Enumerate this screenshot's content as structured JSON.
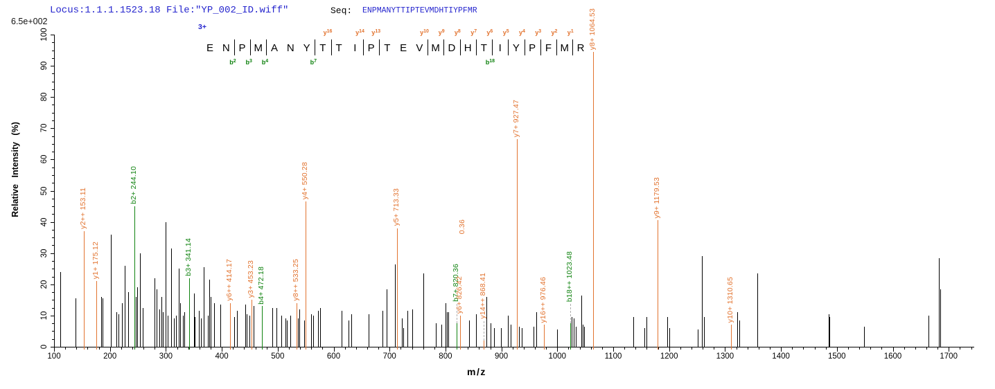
{
  "header": {
    "locus_file": "Locus:1.1.1.1523.18 File:\"YP_002_ID.wiff\"",
    "seq_label": "Seq:",
    "sequence": "ENPMANYTTIPTEVMDHTIYPFMR"
  },
  "colors": {
    "header_blue": "#2626CE",
    "y_ion_orange": "#E2732F",
    "b_ion_green": "#0F820F",
    "peak_black": "#000000",
    "leader_gray": "#ADADAD",
    "axis_black": "#000000"
  },
  "sequence_annotation": {
    "charge": "3+",
    "residues": [
      "E",
      "N",
      "P",
      "M",
      "A",
      "N",
      "Y",
      "T",
      "T",
      "I",
      "P",
      "T",
      "E",
      "V",
      "M",
      "D",
      "H",
      "T",
      "I",
      "Y",
      "P",
      "F",
      "M",
      "R"
    ],
    "cleavages": [
      {
        "after_residue": 2,
        "b_ion": "b2"
      },
      {
        "after_residue": 3,
        "b_ion": "b3"
      },
      {
        "after_residue": 4,
        "b_ion": "b4"
      },
      {
        "after_residue": 7,
        "b_ion": "b7"
      },
      {
        "after_residue": 8,
        "y_ion": "y16"
      },
      {
        "after_residue": 10,
        "y_ion": "y14"
      },
      {
        "after_residue": 11,
        "y_ion": "y13"
      },
      {
        "after_residue": 14,
        "y_ion": "y10"
      },
      {
        "after_residue": 15,
        "y_ion": "y9"
      },
      {
        "after_residue": 16,
        "y_ion": "y8"
      },
      {
        "after_residue": 17,
        "y_ion": "y7"
      },
      {
        "after_residue": 18,
        "y_ion": "y6",
        "b_ion": "b18"
      },
      {
        "after_residue": 19,
        "y_ion": "y5"
      },
      {
        "after_residue": 20,
        "y_ion": "y4"
      },
      {
        "after_residue": 21,
        "y_ion": "y3"
      },
      {
        "after_residue": 22,
        "y_ion": "y2"
      },
      {
        "after_residue": 23,
        "y_ion": "y1"
      }
    ]
  },
  "chart_data": {
    "type": "bar",
    "subtype": "MS/MS peptide fragmentation mass spectrum",
    "title": "",
    "xlabel": "m/z",
    "ylabel": "Relative Intensity (%)",
    "base_intensity_label": "6.5e+002",
    "xlim": [
      100,
      1700
    ],
    "ylim": [
      0,
      100
    ],
    "x_major_tick_step": 100,
    "x_minor_tick_step": 20,
    "y_major_tick_step": 10,
    "y_minor_tick_step": 2.5,
    "x_tick_labels": [
      100,
      200,
      300,
      400,
      500,
      600,
      700,
      800,
      900,
      1000,
      1100,
      1200,
      1300,
      1400,
      1500,
      1600,
      1700
    ],
    "y_tick_labels": [
      0,
      10,
      20,
      30,
      40,
      50,
      60,
      70,
      80,
      90,
      100
    ],
    "grid": false,
    "peaks": [
      [
        111,
        24
      ],
      [
        138,
        15.5
      ],
      [
        184,
        16
      ],
      [
        187,
        15.5
      ],
      [
        202,
        36
      ],
      [
        211,
        11
      ],
      [
        215,
        10.5
      ],
      [
        221,
        14
      ],
      [
        226,
        26
      ],
      [
        232,
        17.5
      ],
      [
        246,
        16
      ],
      [
        249,
        19
      ],
      [
        254,
        30
      ],
      [
        258,
        12.5
      ],
      [
        279,
        22
      ],
      [
        283,
        18.5
      ],
      [
        288,
        12
      ],
      [
        292,
        16
      ],
      [
        295,
        11
      ],
      [
        299,
        40
      ],
      [
        303,
        10
      ],
      [
        309,
        31.5
      ],
      [
        314,
        9
      ],
      [
        318,
        10
      ],
      [
        323,
        25
      ],
      [
        326,
        14
      ],
      [
        330,
        10
      ],
      [
        333,
        11
      ],
      [
        350,
        17
      ],
      [
        352,
        9.5
      ],
      [
        359,
        11.5
      ],
      [
        363,
        9
      ],
      [
        368,
        25.5
      ],
      [
        375,
        10
      ],
      [
        378,
        21.5
      ],
      [
        380,
        16
      ],
      [
        386,
        14
      ],
      [
        397,
        13.5
      ],
      [
        422,
        9.5
      ],
      [
        427,
        11.5
      ],
      [
        442,
        13.5
      ],
      [
        445,
        10.5
      ],
      [
        449,
        10
      ],
      [
        457,
        13
      ],
      [
        490,
        12.5
      ],
      [
        498,
        12.5
      ],
      [
        507,
        10
      ],
      [
        514,
        9
      ],
      [
        516,
        8.5
      ],
      [
        522,
        10
      ],
      [
        536,
        9
      ],
      [
        538,
        12
      ],
      [
        547,
        8.5
      ],
      [
        560,
        10.5
      ],
      [
        564,
        10
      ],
      [
        572,
        11.5
      ],
      [
        576,
        12.5
      ],
      [
        614,
        11.5
      ],
      [
        626,
        8.5
      ],
      [
        632,
        10.5
      ],
      [
        663,
        10.5
      ],
      [
        687,
        11.5
      ],
      [
        695,
        18.5
      ],
      [
        710,
        26.5
      ],
      [
        722,
        9
      ],
      [
        725,
        6
      ],
      [
        732,
        11.5
      ],
      [
        741,
        12
      ],
      [
        761,
        23.5
      ],
      [
        783,
        7.5
      ],
      [
        793,
        7
      ],
      [
        800,
        14
      ],
      [
        802,
        11
      ],
      [
        805,
        11
      ],
      [
        842,
        8.5
      ],
      [
        855,
        10.5
      ],
      [
        873,
        16
      ],
      [
        881,
        7.5
      ],
      [
        887,
        6
      ],
      [
        899,
        6
      ],
      [
        911,
        10
      ],
      [
        917,
        7
      ],
      [
        932,
        6.5
      ],
      [
        936,
        6
      ],
      [
        958,
        6.5
      ],
      [
        963,
        11
      ],
      [
        999,
        5.5
      ],
      [
        1026,
        9.5
      ],
      [
        1029,
        9
      ],
      [
        1033,
        6.5
      ],
      [
        1043,
        16.5
      ],
      [
        1046,
        7
      ],
      [
        1048,
        6.5
      ],
      [
        1136,
        9.5
      ],
      [
        1156,
        6
      ],
      [
        1160,
        9.5
      ],
      [
        1196,
        9.5
      ],
      [
        1200,
        6
      ],
      [
        1251,
        5.5
      ],
      [
        1259,
        29
      ],
      [
        1262,
        9.5
      ],
      [
        1322,
        11
      ],
      [
        1326,
        8.5
      ],
      [
        1358,
        23.5
      ],
      [
        1485,
        10.5
      ],
      [
        1487,
        9.5
      ],
      [
        1549,
        6.5
      ],
      [
        1664,
        10
      ],
      [
        1682,
        28.5
      ],
      [
        1685,
        18.5
      ]
    ],
    "fragment_peaks": [
      {
        "label": "y2++ 153.11",
        "ion": "y",
        "mz": 153.11,
        "intensity": 37,
        "dashed_leader": false
      },
      {
        "label": "y1+ 175.12",
        "ion": "y",
        "mz": 175.12,
        "intensity": 21,
        "dashed_leader": false
      },
      {
        "label": "b2+ 244.10",
        "ion": "b",
        "mz": 244.1,
        "intensity": 45,
        "dashed_leader": false
      },
      {
        "label": "b3+ 341.14",
        "ion": "b",
        "mz": 341.14,
        "intensity": 22,
        "dashed_leader": false
      },
      {
        "label": "y6++ 414.17",
        "ion": "y",
        "mz": 414.17,
        "intensity": 14,
        "dashed_leader": false
      },
      {
        "label": "y3+ 453.23",
        "ion": "y",
        "mz": 453.23,
        "intensity": 15,
        "dashed_leader": false
      },
      {
        "label": "b4+ 472.18",
        "ion": "b",
        "mz": 472.18,
        "intensity": 13,
        "dashed_leader": false
      },
      {
        "label": "y8++ 533.25",
        "ion": "y",
        "mz": 533.25,
        "intensity": 14,
        "dashed_leader": false
      },
      {
        "label": "y4+ 550.28",
        "ion": "y",
        "mz": 550.28,
        "intensity": 46.5,
        "dashed_leader": false
      },
      {
        "label": "y5+ 713.33",
        "ion": "y",
        "mz": 713.33,
        "intensity": 38,
        "dashed_leader": false
      },
      {
        "label": "b7+ 820.36",
        "ion": "b",
        "mz": 820.36,
        "intensity": 7.5,
        "dashed_leader": true
      },
      {
        "label": "y6+ 826.42",
        "ion": "y",
        "mz": 826.42,
        "intensity": 10,
        "dashed_leader": false
      },
      {
        "label": "y14++ 868.41",
        "ion": "y",
        "mz": 868.41,
        "intensity": 2,
        "dashed_leader": true
      },
      {
        "label": "y7+ 927.47",
        "ion": "y",
        "mz": 927.47,
        "intensity": 66.5,
        "dashed_leader": false
      },
      {
        "label": "y16++ 976.46",
        "ion": "y",
        "mz": 976.46,
        "intensity": 7,
        "dashed_leader": false
      },
      {
        "label": "b18++ 1023.48",
        "ion": "b",
        "mz": 1023.48,
        "intensity": 7.5,
        "dashed_leader": true
      },
      {
        "label": "y8+ 1064.53",
        "ion": "y",
        "mz": 1064.53,
        "intensity": 94.5,
        "dashed_leader": false
      },
      {
        "label": "y9+ 1179.53",
        "ion": "y",
        "mz": 1179.53,
        "intensity": 40.5,
        "dashed_leader": false
      },
      {
        "label": "y10+ 1310.65",
        "ion": "y",
        "mz": 1310.65,
        "intensity": 7,
        "dashed_leader": false
      }
    ],
    "overlap_label_fragment": {
      "text": "0.36",
      "ion": "y",
      "mz": 831
    }
  }
}
